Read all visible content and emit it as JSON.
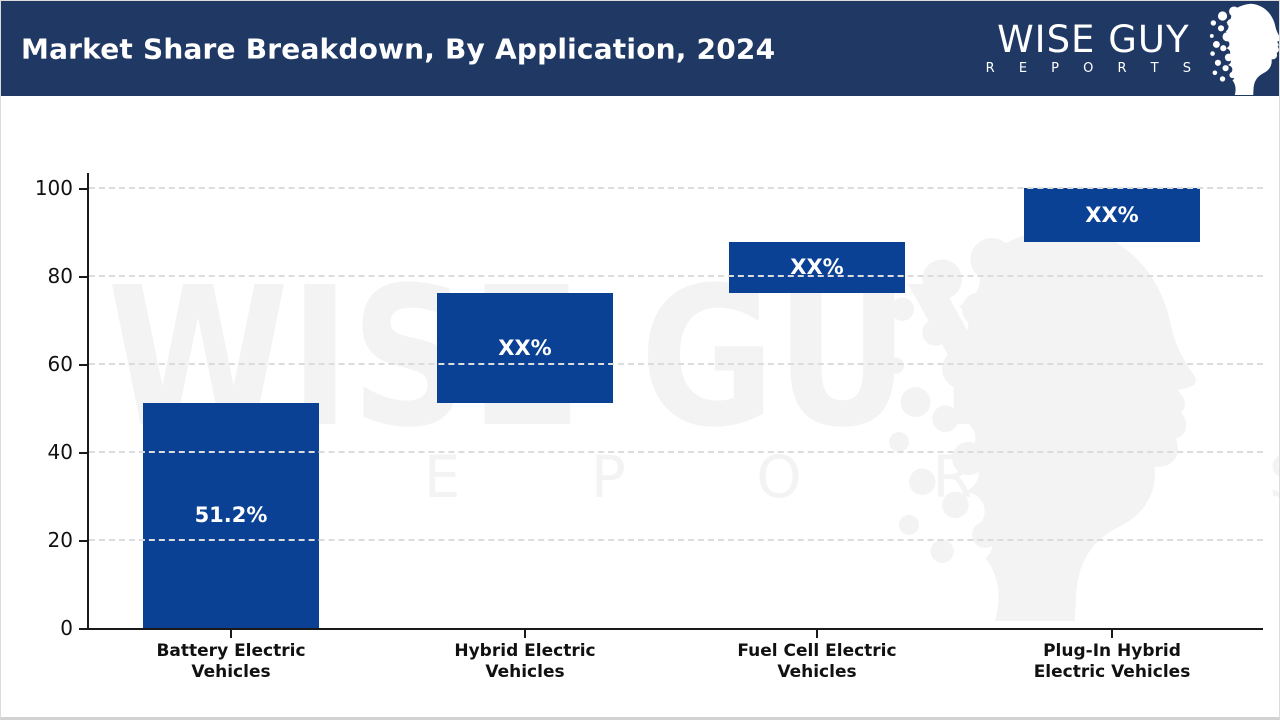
{
  "header": {
    "title": "Market Share Breakdown, By Application, 2024",
    "background_color": "#1f3864",
    "logo": {
      "brand_line1": "WISE GUY",
      "brand_line2": "R E P O R T S"
    }
  },
  "watermark": {
    "line1": "WISE GUY",
    "line2": "R E P O R T S"
  },
  "chart_data": {
    "type": "bar",
    "variant": "floating-segment-waterfall",
    "title": "Market Share Breakdown, By Application, 2024",
    "categories": [
      "Battery Electric Vehicles",
      "Hybrid Electric Vehicles",
      "Fuel Cell Electric Vehicles",
      "Plug-In Hybrid Electric Vehicles"
    ],
    "category_label_lines": [
      [
        "Battery Electric",
        "Vehicles"
      ],
      [
        "Hybrid Electric",
        "Vehicles"
      ],
      [
        "Fuel Cell Electric",
        "Vehicles"
      ],
      [
        "Plug-In Hybrid",
        "Electric Vehicles"
      ]
    ],
    "series": [
      {
        "name": "Market share (%)",
        "segments": [
          {
            "category": "Battery Electric Vehicles",
            "from": 0,
            "to": 51.2,
            "value": 51.2,
            "label": "51.2%"
          },
          {
            "category": "Hybrid Electric Vehicles",
            "from": 51.2,
            "to": 76.2,
            "value": 25.0,
            "label": "XX%"
          },
          {
            "category": "Fuel Cell Electric Vehicles",
            "from": 76.2,
            "to": 87.7,
            "value": 11.5,
            "label": "XX%"
          },
          {
            "category": "Plug-In Hybrid Electric Vehicles",
            "from": 87.7,
            "to": 100.0,
            "value": 12.3,
            "label": "XX%"
          }
        ]
      }
    ],
    "xlabel": "",
    "ylabel": "",
    "ylim": [
      0,
      100
    ],
    "yticks": [
      0,
      20,
      40,
      60,
      80,
      100
    ],
    "grid": {
      "axis": "y",
      "style": "dashed",
      "color": "#dcdcdc",
      "drawn_over_bars": true
    },
    "legend": "none",
    "bar_color": "#0b4194",
    "bar_label_color": "#ffffff",
    "axis_color": "#1a1a1a"
  }
}
